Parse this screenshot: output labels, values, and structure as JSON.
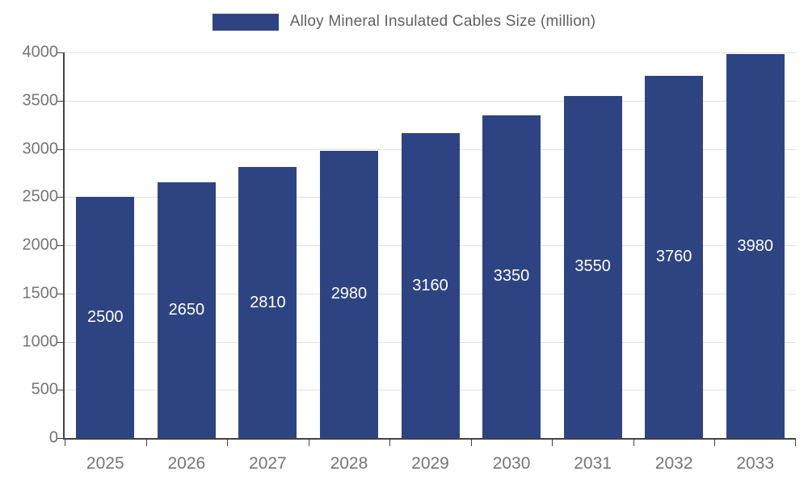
{
  "chart_data": {
    "type": "bar",
    "title": "Alloy Mineral Insulated Cables Size (million)",
    "categories": [
      "2025",
      "2026",
      "2027",
      "2028",
      "2029",
      "2030",
      "2031",
      "2032",
      "2033"
    ],
    "values": [
      2500,
      2650,
      2810,
      2980,
      3160,
      3350,
      3550,
      3760,
      3980
    ],
    "xlabel": "",
    "ylabel": "",
    "ylim": [
      0,
      4000
    ],
    "yticks": [
      0,
      500,
      1000,
      1500,
      2000,
      2500,
      3000,
      3500,
      4000
    ],
    "grid": true,
    "legend_position": "top-center",
    "colors": {
      "bar": "#2e4482",
      "bar_value_label": "#ffffff",
      "axis_line": "#424242",
      "grid_line": "#e0e0e0",
      "tick_label": "#757575",
      "legend_text": "#616161",
      "background": "#ffffff"
    }
  }
}
